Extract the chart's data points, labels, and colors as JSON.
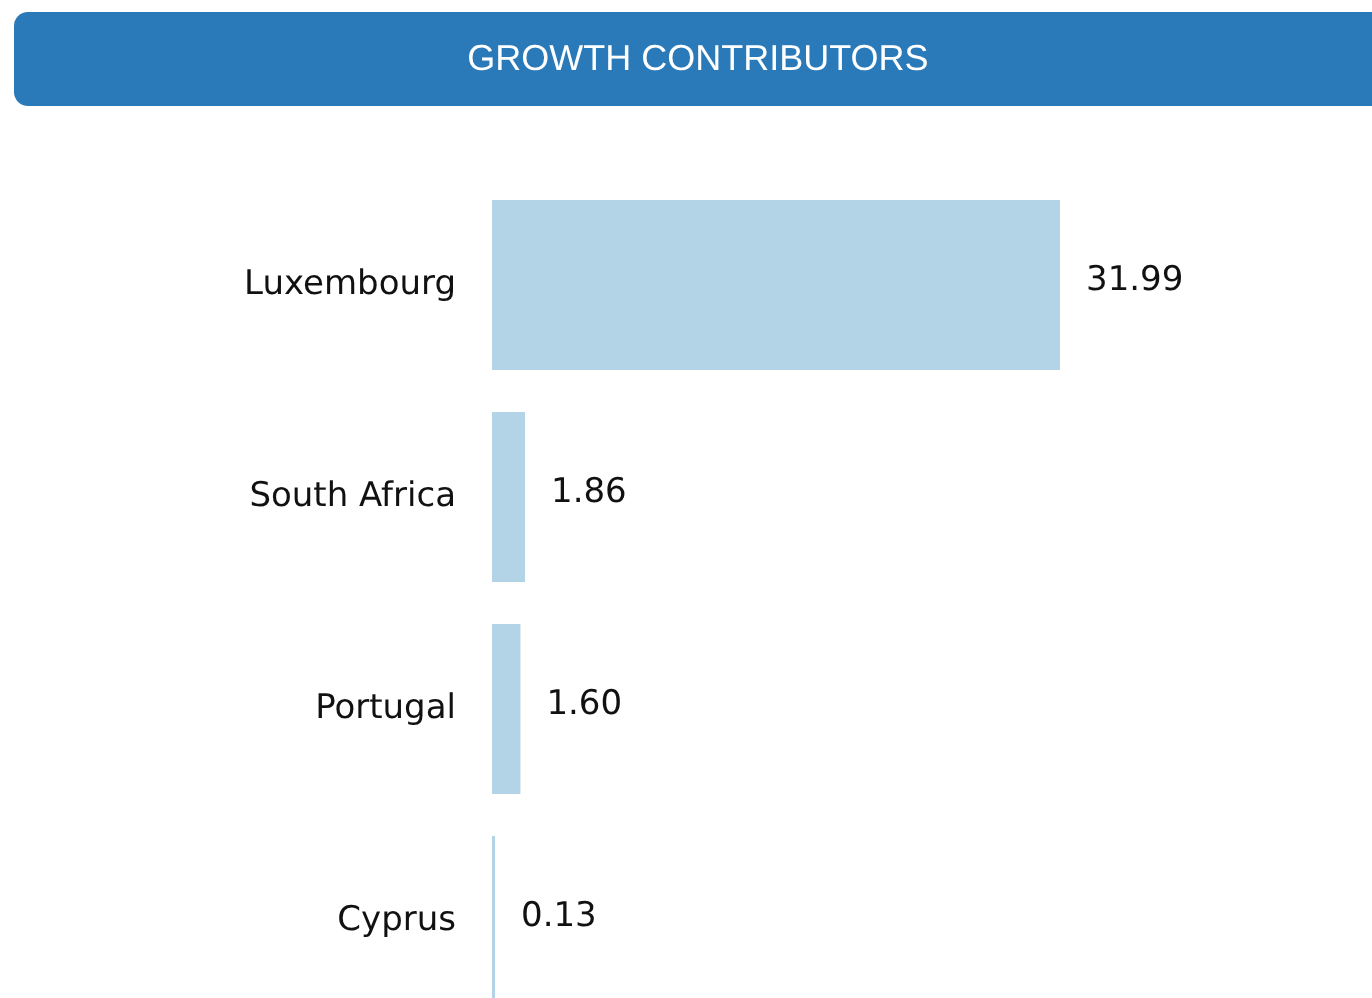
{
  "chart_data": {
    "type": "bar",
    "orientation": "horizontal",
    "title": "GROWTH CONTRIBUTORS",
    "categories": [
      "Luxembourg",
      "South Africa",
      "Portugal",
      "Cyprus"
    ],
    "values": [
      31.99,
      1.86,
      1.6,
      0.13
    ],
    "value_labels": [
      "31.99",
      "1.86",
      "1.60",
      "0.13"
    ],
    "color": "#b3d4e6"
  }
}
